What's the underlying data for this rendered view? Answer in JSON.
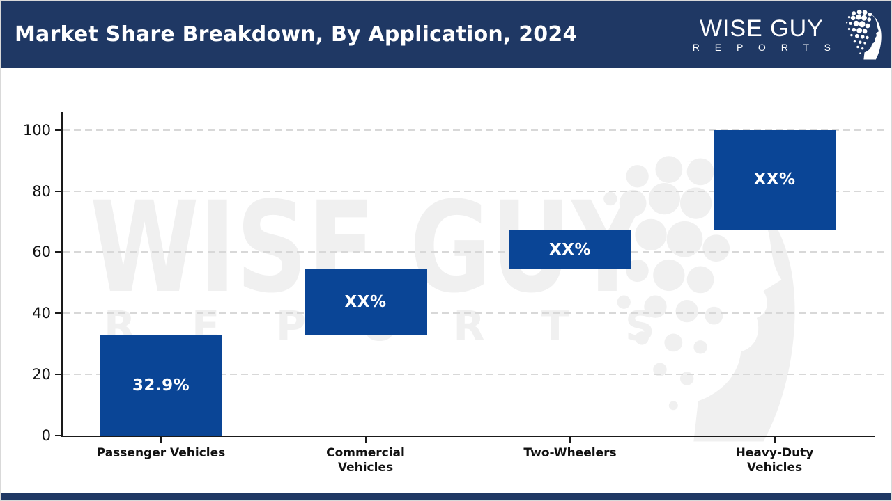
{
  "header": {
    "title": "Market Share Breakdown, By Application, 2024",
    "bg_color": "#1f3864",
    "logo": {
      "wordmark": "WISE GUY",
      "subtext": "R E P O R T S"
    }
  },
  "watermark": {
    "wordmark": "WISE GUY",
    "subtext": "R E P O R T S"
  },
  "chart_data": {
    "type": "bar",
    "subtype": "waterfall",
    "title": "Market Share Breakdown, By Application, 2024",
    "categories": [
      "Passenger Vehicles",
      "Commercial\nVehicles",
      "Two-Wheelers",
      "Heavy-Duty\nVehicles"
    ],
    "segments": [
      {
        "category": "Passenger Vehicles",
        "start": 0,
        "end": 32.9,
        "label": "32.9%"
      },
      {
        "category": "Commercial Vehicles",
        "start": 32.9,
        "end": 54.4,
        "label": "XX%"
      },
      {
        "category": "Two-Wheelers",
        "start": 54.4,
        "end": 67.4,
        "label": "XX%"
      },
      {
        "category": "Heavy-Duty Vehicles",
        "start": 67.4,
        "end": 100,
        "label": "XX%"
      }
    ],
    "y_ticks": [
      0,
      20,
      40,
      60,
      80,
      100
    ],
    "ylim": [
      0,
      105
    ],
    "xlabel": "",
    "ylabel": "",
    "grid": "horizontal-dashed",
    "legend": "none",
    "bar_color": "#0a4596",
    "axis_color": "#1a1a1a",
    "grid_color": "#d8d8d8"
  }
}
